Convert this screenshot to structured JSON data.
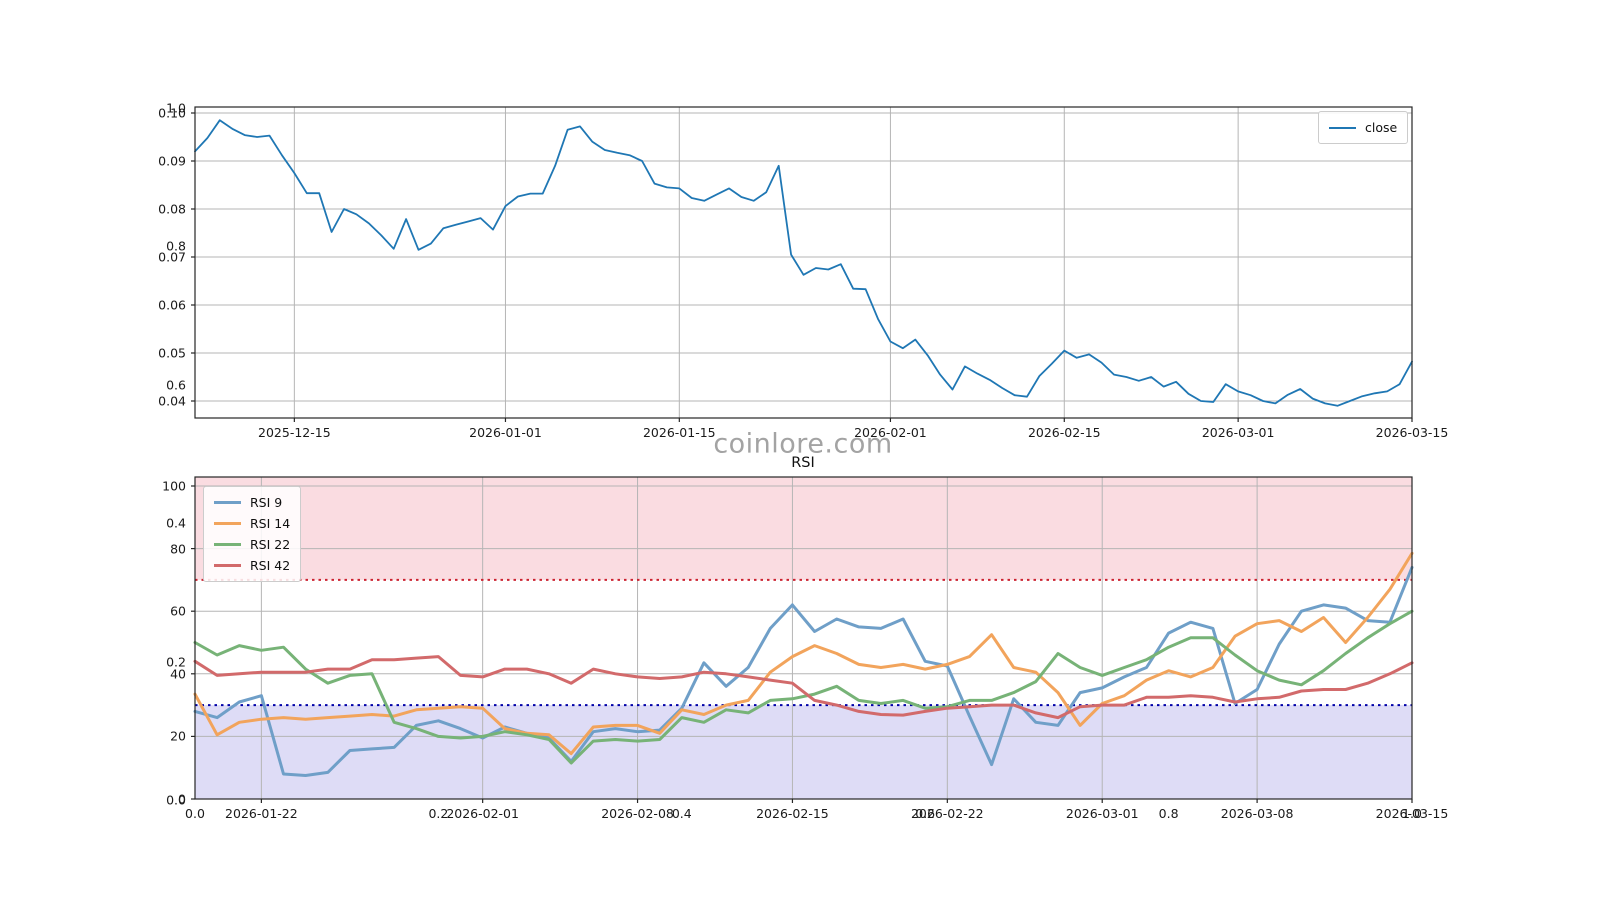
{
  "watermark": "coinlore.com",
  "overlay_axis": {
    "x_tick_labels": [
      "0.0",
      "0.2",
      "0.4",
      "0.6",
      "0.8",
      "1.0"
    ],
    "y_tick_labels": [
      "1.0",
      "0.8",
      "0.6",
      "0.4",
      "0.2",
      "0.0"
    ]
  },
  "chart_data": [
    {
      "type": "line",
      "title": "",
      "panel": "price",
      "legend_position": "upper right",
      "grid": true,
      "x_interval": "daily",
      "x_start": "2025-12-07",
      "x_end": "2026-03-15",
      "x_tick_labels": [
        "2025-12-15",
        "2026-01-01",
        "2026-01-15",
        "2026-02-01",
        "2026-02-15",
        "2026-03-01",
        "2026-03-15"
      ],
      "x_tick_day_index": [
        8,
        25,
        39,
        56,
        70,
        84,
        98
      ],
      "y_tick_labels": [
        "0.10",
        "0.09",
        "0.08",
        "0.07",
        "0.06",
        "0.05",
        "0.04"
      ],
      "y_tick_values": [
        0.1,
        0.09,
        0.08,
        0.07,
        0.06,
        0.05,
        0.04
      ],
      "ylim": [
        0.0365,
        0.10125
      ],
      "series": [
        {
          "name": "close",
          "color": "#1f77b4",
          "width": 1.8,
          "values": [
            0.092,
            0.0948,
            0.0985,
            0.0967,
            0.0954,
            0.095,
            0.0953,
            0.0912,
            0.0875,
            0.0833,
            0.0833,
            0.0752,
            0.08,
            0.0789,
            0.077,
            0.0745,
            0.0717,
            0.0779,
            0.0715,
            0.0728,
            0.076,
            0.0767,
            0.0774,
            0.0781,
            0.0757,
            0.0806,
            0.0826,
            0.0832,
            0.0832,
            0.089,
            0.0965,
            0.0972,
            0.094,
            0.0923,
            0.0917,
            0.0912,
            0.09,
            0.0853,
            0.0845,
            0.0843,
            0.0823,
            0.0817,
            0.083,
            0.0843,
            0.0825,
            0.0817,
            0.0835,
            0.089,
            0.0705,
            0.0663,
            0.0677,
            0.0674,
            0.0685,
            0.0634,
            0.0633,
            0.0571,
            0.0524,
            0.051,
            0.0528,
            0.0495,
            0.0455,
            0.0424,
            0.0472,
            0.0457,
            0.0444,
            0.0427,
            0.0412,
            0.0409,
            0.0452,
            0.0478,
            0.0505,
            0.049,
            0.0497,
            0.048,
            0.0455,
            0.045,
            0.0442,
            0.045,
            0.043,
            0.044,
            0.0415,
            0.04,
            0.0398,
            0.0435,
            0.042,
            0.0412,
            0.04,
            0.0395,
            0.0413,
            0.0425,
            0.0405,
            0.0395,
            0.039,
            0.04,
            0.041,
            0.0416,
            0.042,
            0.0435,
            0.0482
          ]
        }
      ]
    },
    {
      "type": "line",
      "title": "RSI",
      "panel": "rsi",
      "legend_position": "upper left",
      "grid": true,
      "x_interval": "daily",
      "x_start": "2026-01-19",
      "x_end": "2026-03-15",
      "x_tick_labels": [
        "2026-01-22",
        "2026-02-01",
        "2026-02-08",
        "2026-02-15",
        "2026-02-22",
        "2026-03-01",
        "2026-03-08",
        "2026-03-15"
      ],
      "x_tick_day_index": [
        3,
        13,
        20,
        27,
        34,
        41,
        48,
        55
      ],
      "y_tick_labels": [
        "100",
        "80",
        "60",
        "40",
        "20",
        "0"
      ],
      "y_tick_values": [
        100,
        80,
        60,
        40,
        20,
        0
      ],
      "ylim": [
        0,
        103
      ],
      "overbought_level": 70,
      "oversold_level": 30,
      "overbought_line_color": "#cc2230",
      "oversold_line_color": "#0000a8",
      "overbought_band_color": "#fadce1",
      "oversold_band_color": "#dedcf6",
      "series": [
        {
          "name": "RSI 9",
          "color": "#6f9fc8",
          "width": 3,
          "values": [
            28,
            26,
            31,
            33,
            8,
            7.5,
            8.5,
            15.5,
            16,
            16.5,
            23.5,
            25,
            22.5,
            19.5,
            23,
            21,
            19.5,
            12,
            21.5,
            22.5,
            21.5,
            22,
            29,
            43.5,
            36,
            42,
            54.5,
            62,
            53.5,
            57.5,
            55,
            54.5,
            57.5,
            44,
            42.5,
            26.5,
            11,
            32,
            24.5,
            23.5,
            34,
            35.5,
            39,
            42,
            53,
            56.5,
            54.5,
            30.5,
            35,
            49.5,
            60,
            62,
            61,
            57,
            56.5,
            74
          ]
        },
        {
          "name": "RSI 14",
          "color": "#f2a45c",
          "width": 3,
          "values": [
            33.5,
            20.5,
            24.5,
            25.5,
            26,
            25.5,
            26,
            26.5,
            27,
            26.5,
            28.5,
            29,
            29.5,
            29,
            22.5,
            21,
            20.5,
            14.5,
            23,
            23.5,
            23.5,
            21,
            28.5,
            27,
            30,
            31.5,
            40.5,
            45.5,
            49,
            46.5,
            43,
            42,
            43,
            41.5,
            43,
            45.5,
            52.5,
            42,
            40.5,
            34,
            23.5,
            30.5,
            33,
            38,
            41,
            39,
            42,
            52,
            56,
            57,
            53.5,
            58,
            50,
            58,
            67,
            78.5
          ]
        },
        {
          "name": "RSI 22",
          "color": "#77b377",
          "width": 3,
          "values": [
            50,
            46,
            49,
            47.5,
            48.5,
            41.5,
            37,
            39.5,
            40,
            24.5,
            22.5,
            20,
            19.5,
            20,
            21.5,
            20.5,
            19,
            11.5,
            18.5,
            19,
            18.5,
            19,
            26,
            24.5,
            28.5,
            27.5,
            31.5,
            32,
            33.5,
            36,
            31.5,
            30.5,
            31.5,
            29,
            29.5,
            31.5,
            31.5,
            34,
            37.5,
            46.5,
            42,
            39.5,
            42,
            44.5,
            48.5,
            51.5,
            51.5,
            46,
            41,
            38,
            36.5,
            41,
            46.5,
            51.5,
            56,
            60
          ]
        },
        {
          "name": "RSI 42",
          "color": "#d26a6b",
          "width": 3,
          "values": [
            44,
            39.5,
            40,
            40.5,
            40.5,
            40.5,
            41.5,
            41.5,
            44.5,
            44.5,
            45,
            45.5,
            39.5,
            39,
            41.5,
            41.5,
            40,
            37,
            41.5,
            40,
            39,
            38.5,
            39,
            40.5,
            40,
            39,
            38,
            37,
            31.5,
            30,
            28,
            27,
            26.8,
            28,
            29,
            29.5,
            30,
            30,
            27.5,
            26,
            29.5,
            30,
            30,
            32.5,
            32.5,
            33,
            32.5,
            31,
            32,
            32.5,
            34.5,
            35,
            35,
            37,
            40,
            43.5
          ]
        }
      ]
    }
  ]
}
